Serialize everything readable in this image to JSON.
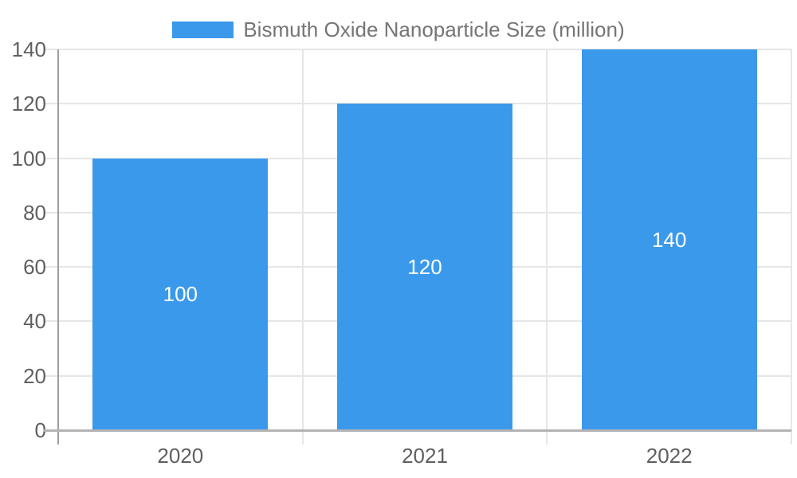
{
  "legend": {
    "label": "Bismuth Oxide Nanoparticle Size (million)"
  },
  "chart_data": {
    "type": "bar",
    "title": "",
    "series_name": "Bismuth Oxide Nanoparticle Size (million)",
    "categories": [
      "2020",
      "2021",
      "2022"
    ],
    "values": [
      100,
      120,
      140
    ],
    "bar_labels": [
      "100",
      "120",
      "140"
    ],
    "xlabel": "",
    "ylabel": "",
    "ylim": [
      0,
      140
    ],
    "ytick_step": 20,
    "ytick_labels": [
      "0",
      "20",
      "40",
      "60",
      "80",
      "100",
      "120",
      "140"
    ],
    "grid": true,
    "legend_position": "top",
    "colors": {
      "bar": "#3B99EC",
      "bar_label_text": "#ffffff",
      "gridline": "#e6e6e6",
      "y_axis_line": "#9e9e9e",
      "x_axis_line": "#b3b3b3",
      "tick_label": "#5f5f5f",
      "legend_text": "#757575",
      "background": "#ffffff"
    }
  }
}
